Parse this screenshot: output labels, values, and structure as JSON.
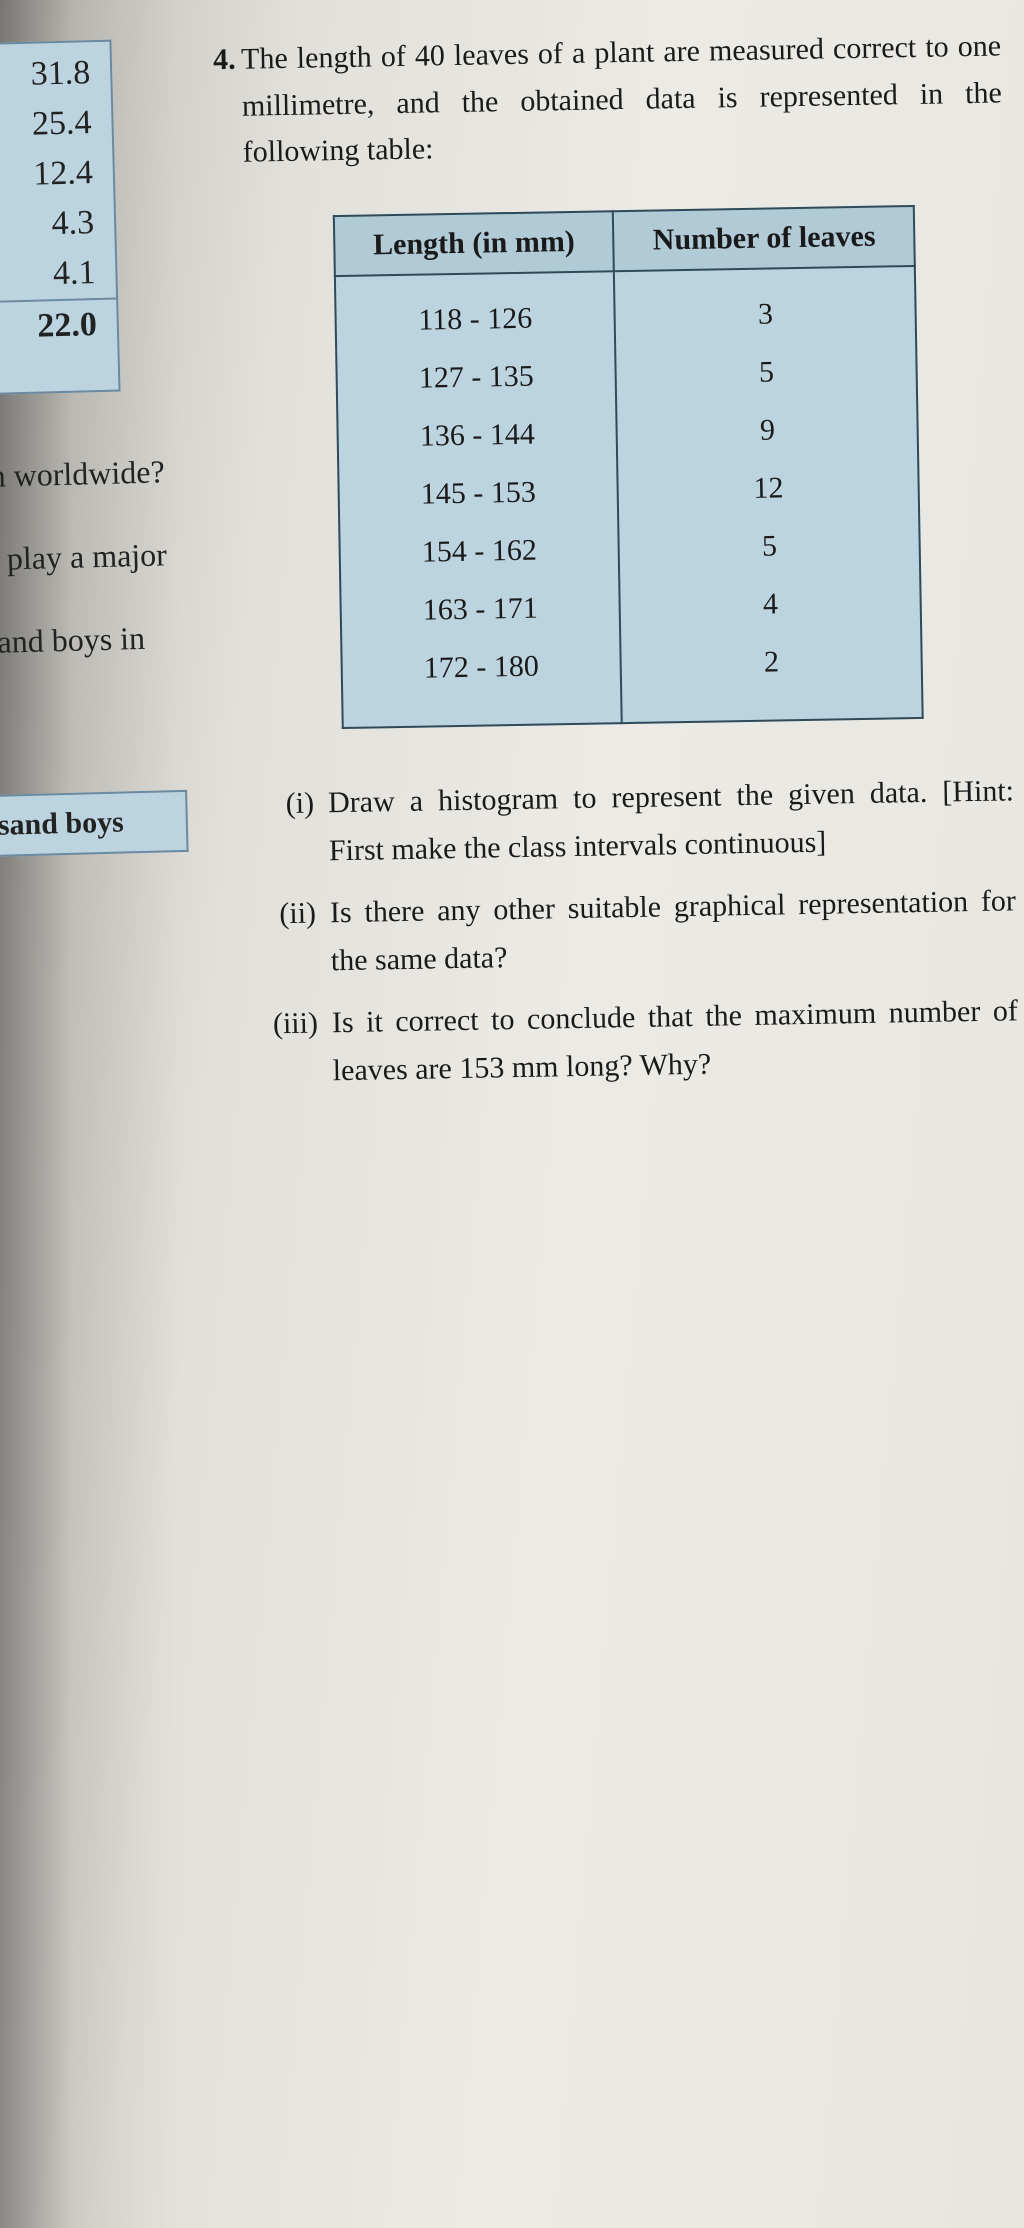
{
  "leftFragment": {
    "nums": [
      "31.8",
      "25.4",
      "12.4",
      "4.3",
      "4.1"
    ],
    "total": "22.0",
    "lines": [
      "th worldwide?",
      "h play a major",
      "sand boys in"
    ],
    "bandHeader": "sand boys"
  },
  "question": {
    "num": "4.",
    "intro": "The length of 40 leaves of a plant are measured correct to one millimetre, and the obtained data is represented in the following table:",
    "table": {
      "headers": [
        "Length (in mm)",
        "Number of leaves"
      ],
      "rows": [
        [
          "118 - 126",
          "3"
        ],
        [
          "127 - 135",
          "5"
        ],
        [
          "136 - 144",
          "9"
        ],
        [
          "145 - 153",
          "12"
        ],
        [
          "154 - 162",
          "5"
        ],
        [
          "163 - 171",
          "4"
        ],
        [
          "172 - 180",
          "2"
        ]
      ],
      "border_color": "#2f4a5a",
      "fill_color": "#bcd4df",
      "header_fill": "#b0cad6",
      "font_size": 30
    },
    "subparts": [
      {
        "rn": "(i)",
        "text": "Draw a histogram to represent the given data. [Hint: First make the class intervals continuous]"
      },
      {
        "rn": "(ii)",
        "text": "Is there any other suitable graphical representation for the same data?"
      },
      {
        "rn": "(iii)",
        "text": "Is it correct to conclude that the maximum number of leaves are 153 mm long? Why?"
      }
    ]
  },
  "colors": {
    "page_bg_left": "#b8b6b0",
    "page_bg_right": "#eceae4",
    "text": "#1a1a1a"
  }
}
